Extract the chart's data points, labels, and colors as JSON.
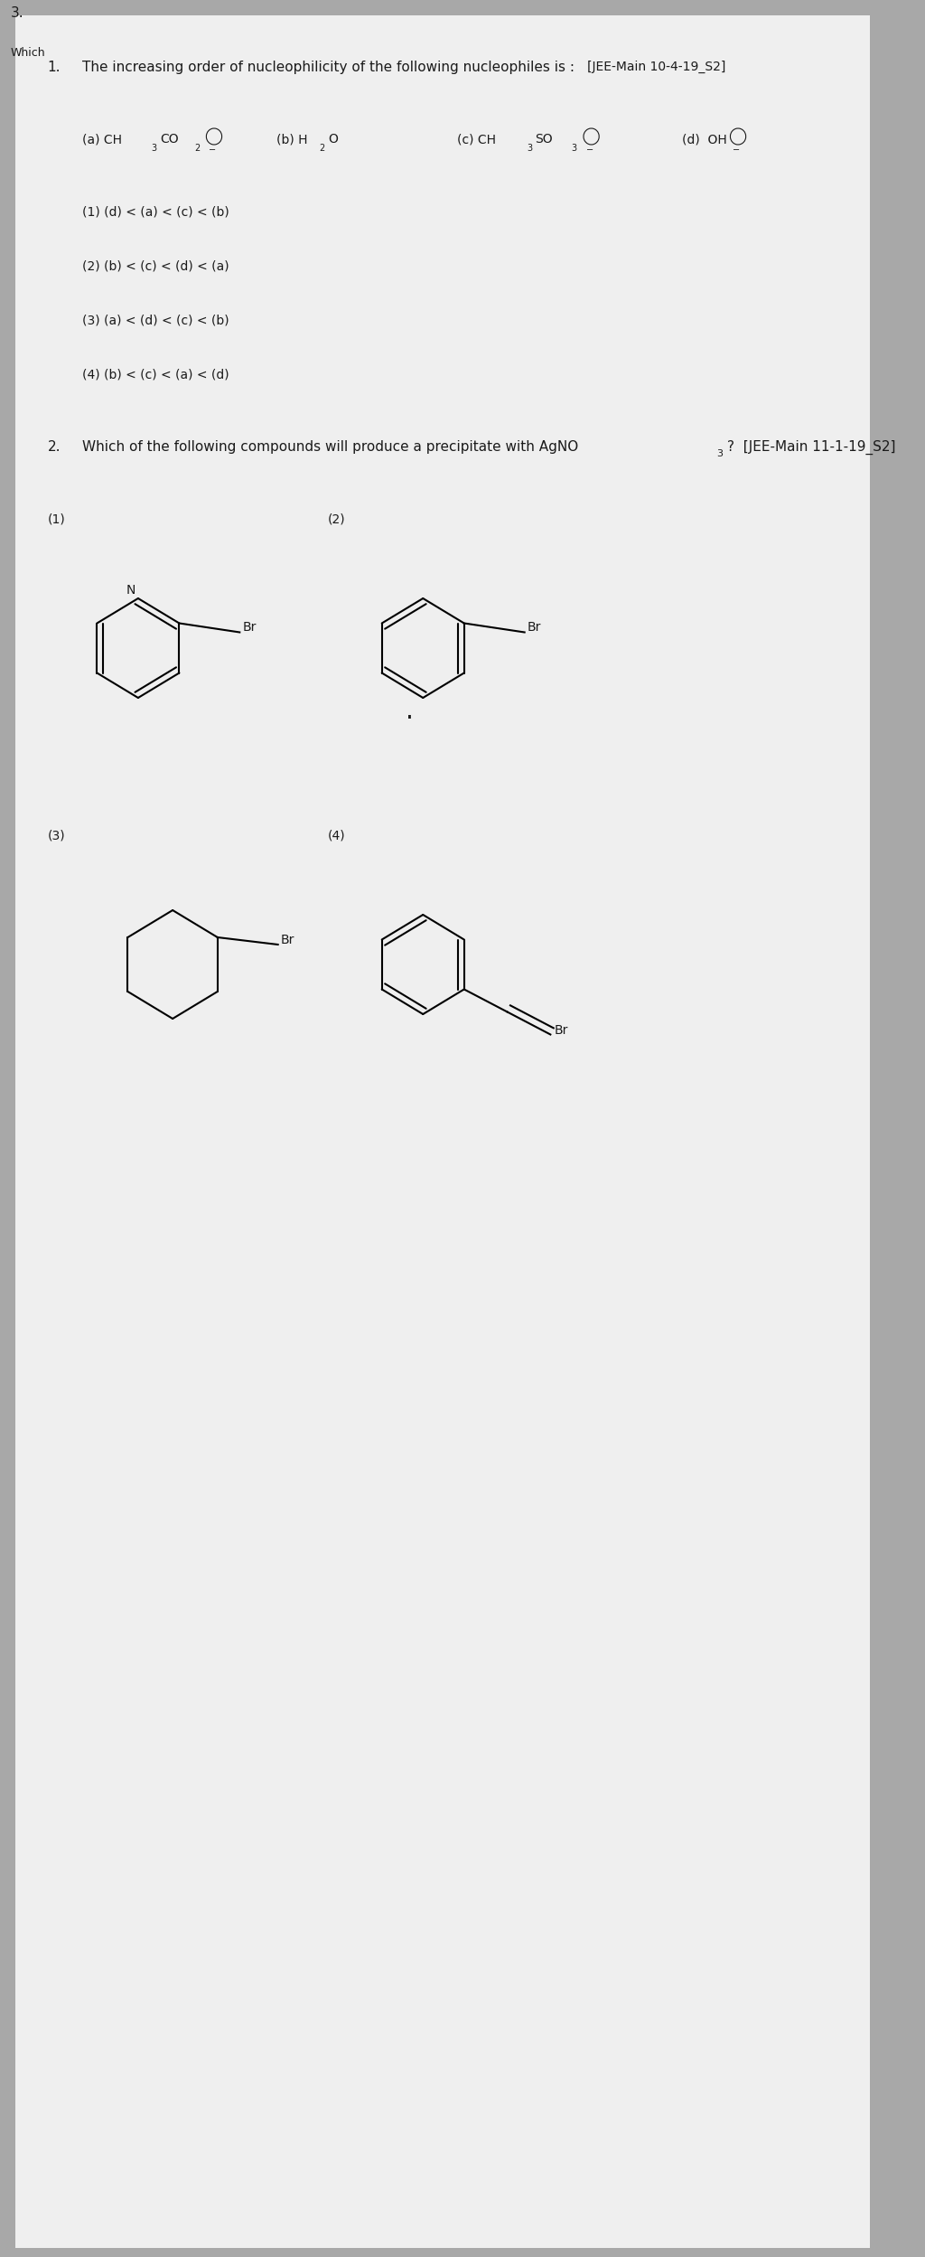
{
  "bg_color": "#b0b0b0",
  "page_color": "#e8e8e8",
  "text_color": "#1a1a1a",
  "fs_main": 11,
  "fs_small": 10,
  "fs_sub": 8,
  "fs_tiny": 7,
  "q1_line1a": "The increasing order of nucleophilicity of the following nucleophiles is :",
  "q1_line1b": "[JEE-Main 10-4-19_S2]",
  "q1_answers": [
    "(1) (d) < (a) < (c) < (b)",
    "(2) (b) < (c) < (d) < (a)",
    "(3) (a) < (d) < (c) < (b)",
    "(4) (b) < (c) < (a) < (d)"
  ],
  "q2_line1": "Which of the following compounds will produce a precipitate with AgNO",
  "q2_line1b": "?  [JEE-Main 11-1-19_S2]",
  "struct_labels": [
    "(1)",
    "(2)",
    "(3)",
    "(4)"
  ]
}
